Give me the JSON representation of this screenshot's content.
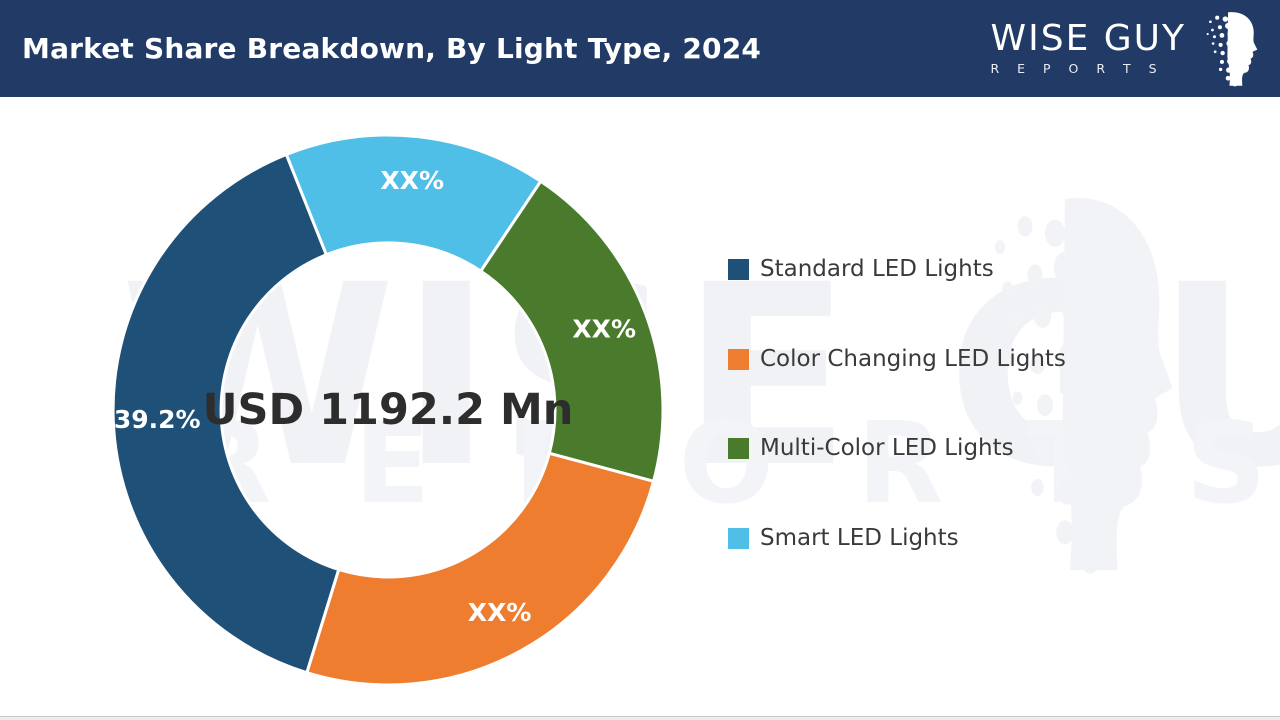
{
  "header": {
    "title": "Market Share Breakdown, By Light Type, 2024",
    "bg_color": "#213A66",
    "logo": {
      "line1": "WISE GUY",
      "line2": "R E P O R T S"
    }
  },
  "watermark": {
    "line1": "WISE GUY",
    "line2": "R E P O R T S"
  },
  "chart_data": {
    "type": "pie",
    "subtype": "donut",
    "title": "Market Share Breakdown, By Light Type, 2024",
    "center_label": "USD 1192.2 Mn",
    "legend_position": "right",
    "start_angle_deg": -21.7,
    "slices": [
      {
        "label": "Standard LED Lights",
        "display": "39.2%",
        "value": 39.2,
        "color": "#1F5078"
      },
      {
        "label": "Color Changing LED Lights",
        "display": "XX%",
        "value": 25.6,
        "color": "#EE7D30"
      },
      {
        "label": "Multi-Color LED Lights",
        "display": "XX%",
        "value": 19.8,
        "color": "#4A7A2B"
      },
      {
        "label": "Smart LED Lights",
        "display": "XX%",
        "value": 15.4,
        "color": "#4FBFE8"
      }
    ]
  }
}
